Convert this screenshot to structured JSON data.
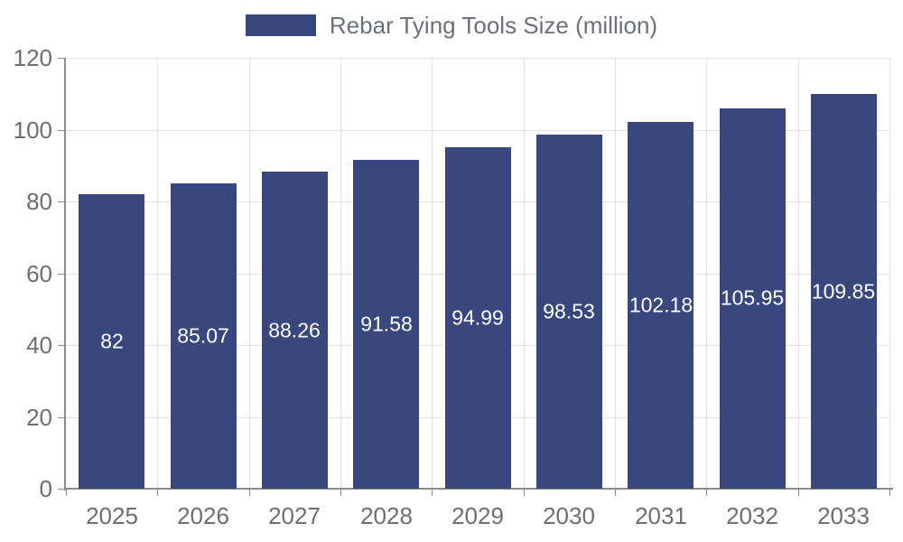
{
  "legend": {
    "label": "Rebar Tying Tools Size (million)"
  },
  "chart_data": {
    "type": "bar",
    "title": "Rebar Tying Tools Size (million)",
    "categories": [
      "2025",
      "2026",
      "2027",
      "2028",
      "2029",
      "2030",
      "2031",
      "2032",
      "2033"
    ],
    "values": [
      82,
      85.07,
      88.26,
      91.58,
      94.99,
      98.53,
      102.18,
      105.95,
      109.85
    ],
    "values_display": [
      "82",
      "85.07",
      "88.26",
      "91.58",
      "94.99",
      "98.53",
      "102.18",
      "105.95",
      "109.85"
    ],
    "xlabel": "",
    "ylabel": "",
    "ylim": [
      0,
      120
    ],
    "yticks": [
      0,
      20,
      40,
      60,
      80,
      100,
      120
    ],
    "grid": true,
    "legend_position": "top",
    "bar_label_position": "inside-center",
    "colors": {
      "bar": "#38477E",
      "axis": "#8C8C8C",
      "grid": "#E0E0E6",
      "axis_text": "#6E6E73",
      "legend_text": "#6E7079",
      "bar_label": "#FFFFFF",
      "background": "#FFFFFF"
    }
  }
}
